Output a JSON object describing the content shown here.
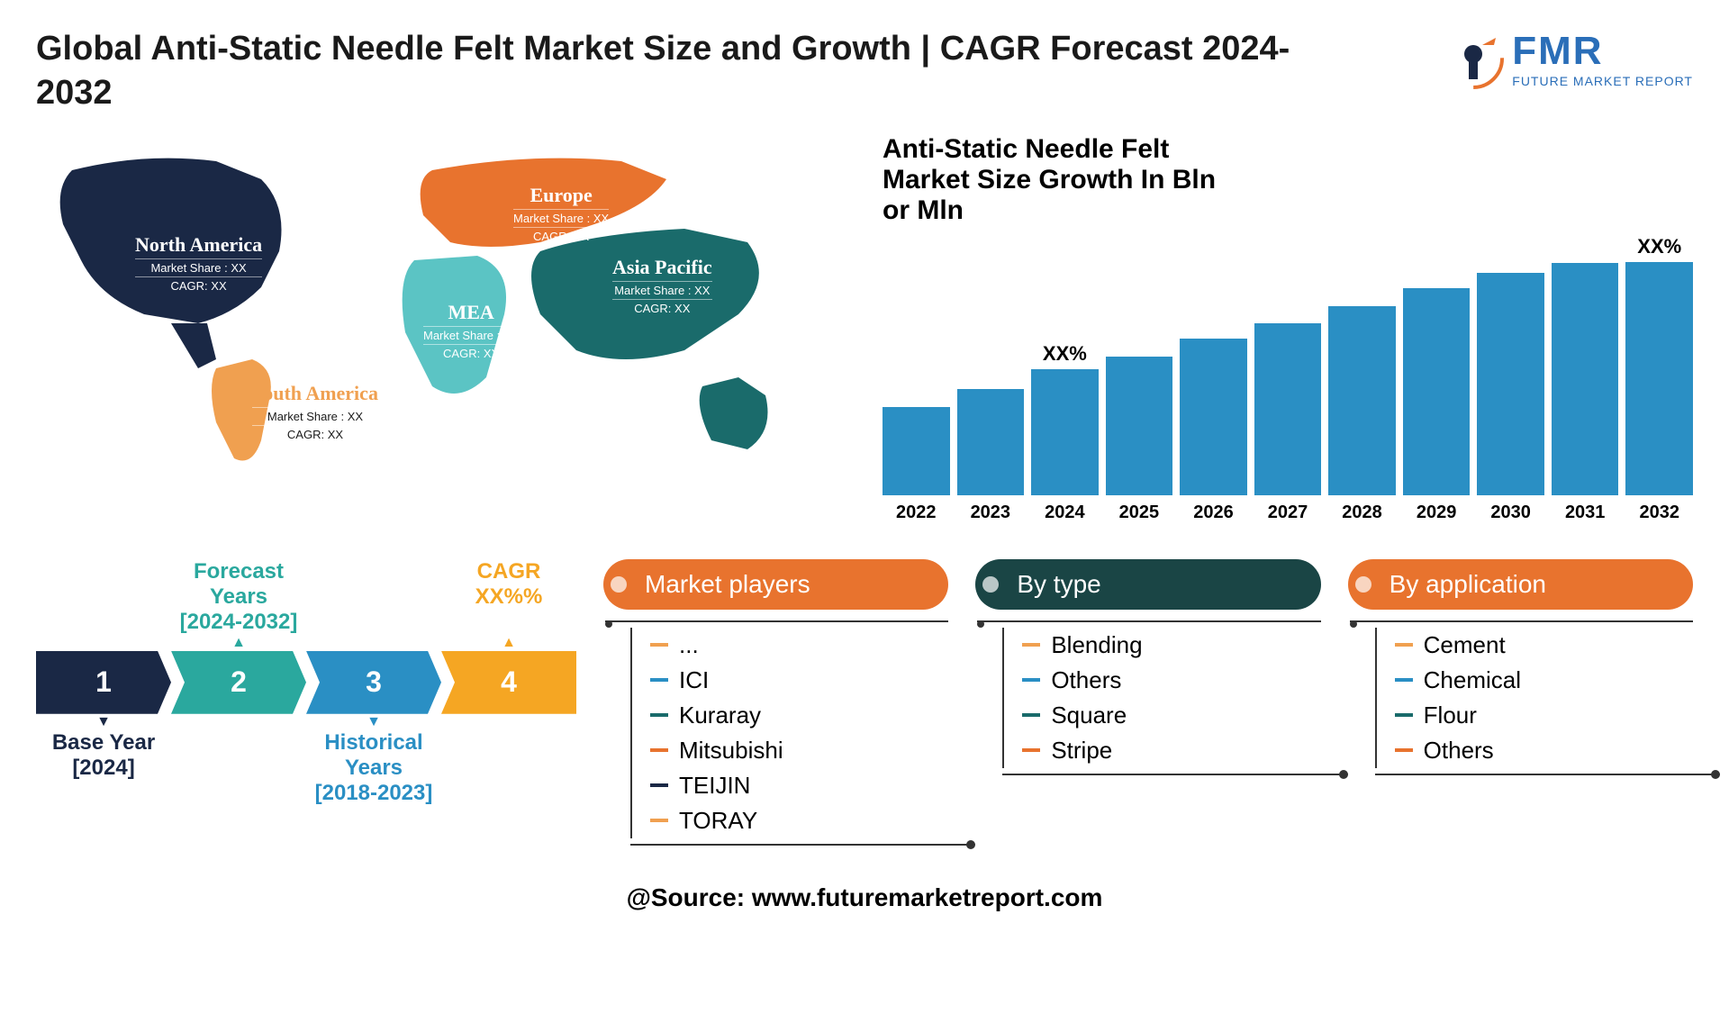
{
  "title": "Global Anti-Static Needle Felt Market Size and Growth | CAGR Forecast 2024-2032",
  "logo": {
    "fmr": "FMR",
    "sub": "FUTURE MARKET REPORT"
  },
  "map": {
    "regions": [
      {
        "name": "North America",
        "share": "Market Share : XX",
        "cagr": "CAGR: XX",
        "color": "#1a2845"
      },
      {
        "name": "South America",
        "share": "Market Share : XX",
        "cagr": "CAGR: XX",
        "color": "#f0a050"
      },
      {
        "name": "Europe",
        "share": "Market Share : XX",
        "cagr": "CAGR: XX",
        "color": "#e8732e"
      },
      {
        "name": "MEA",
        "share": "Market Share : XX",
        "cagr": "CAGR: XX",
        "color": "#5bc4c4"
      },
      {
        "name": "Asia Pacific",
        "share": "Market Share : XX",
        "cagr": "CAGR: XX",
        "color": "#1a6b6b"
      }
    ]
  },
  "chart": {
    "title": "Anti-Static Needle Felt Market Size Growth In Bln or Mln",
    "years": [
      "2022",
      "2023",
      "2024",
      "2025",
      "2026",
      "2027",
      "2028",
      "2029",
      "2030",
      "2031",
      "2032"
    ],
    "values": [
      35,
      42,
      50,
      55,
      62,
      68,
      75,
      82,
      88,
      92,
      100
    ],
    "bar_color": "#2a8fc4",
    "annotations": {
      "2024": "XX%",
      "2032": "XX%"
    },
    "ylim": [
      0,
      100
    ]
  },
  "timeline": {
    "segments": [
      {
        "num": "1",
        "color": "#1a2845",
        "label": "Base Year",
        "sublabel": "[2024]",
        "label_color": "#1a2845",
        "pos": "bottom"
      },
      {
        "num": "2",
        "color": "#2aa89e",
        "label": "Forecast Years",
        "sublabel": "[2024-2032]",
        "label_color": "#2aa89e",
        "pos": "top"
      },
      {
        "num": "3",
        "color": "#2a8fc4",
        "label": "Historical Years",
        "sublabel": "[2018-2023]",
        "label_color": "#2a8fc4",
        "pos": "bottom"
      },
      {
        "num": "4",
        "color": "#f5a623",
        "label": "CAGR",
        "sublabel": "XX%%",
        "label_color": "#f5a623",
        "pos": "top"
      }
    ]
  },
  "panels": [
    {
      "title": "Market players",
      "pill_color": "#e8732e",
      "items": [
        {
          "text": "...",
          "color": "#f0a050"
        },
        {
          "text": "ICI",
          "color": "#2a8fc4"
        },
        {
          "text": "Kuraray",
          "color": "#1a6b6b"
        },
        {
          "text": "Mitsubishi",
          "color": "#e8732e"
        },
        {
          "text": "TEIJIN",
          "color": "#1a2845"
        },
        {
          "text": "TORAY",
          "color": "#f0a050"
        }
      ]
    },
    {
      "title": "By type",
      "pill_color": "#1a4545",
      "items": [
        {
          "text": "Blending",
          "color": "#f0a050"
        },
        {
          "text": "Others",
          "color": "#2a8fc4"
        },
        {
          "text": "Square",
          "color": "#1a6b6b"
        },
        {
          "text": "Stripe",
          "color": "#e8732e"
        }
      ]
    },
    {
      "title": "By application",
      "pill_color": "#e8732e",
      "items": [
        {
          "text": "Cement",
          "color": "#f0a050"
        },
        {
          "text": "Chemical",
          "color": "#2a8fc4"
        },
        {
          "text": "Flour",
          "color": "#1a6b6b"
        },
        {
          "text": "Others",
          "color": "#e8732e"
        }
      ]
    }
  ],
  "source": "@Source: www.futuremarketreport.com"
}
